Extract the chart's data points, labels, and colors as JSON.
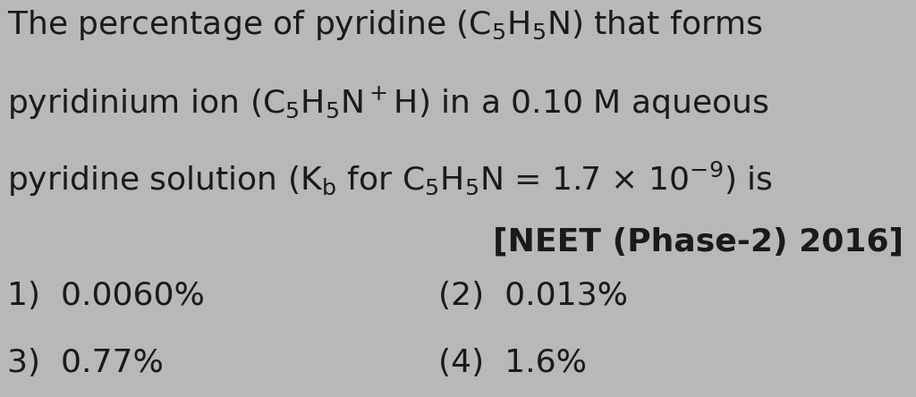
{
  "background_color": "#b8b8b8",
  "text_color": "#1a1a1a",
  "font_size_main": 26,
  "font_size_neet": 26,
  "font_size_opt": 26,
  "line1": "The percentage of pyridine ($\\mathregular{C_5H_5N}$) that forms",
  "line2": "pyridinium ion ($\\mathregular{C_5H_5N^+H}$) in a 0.10 M aqueous",
  "line3": "pyridine solution ($\\mathregular{K_b}$ for $\\mathregular{C_5H_5N}$ = 1.7 × 10$^{-9}$) is",
  "neet_label": "[NEET (Phase-2) 2016]",
  "opt1_num": "1)",
  "opt1_val": "0.0060%",
  "opt2_num": "(2)",
  "opt2_val": "0.013%",
  "opt3_num": "3)",
  "opt3_val": "0.77%",
  "opt4_num": "(4)",
  "opt4_val": "1.6%"
}
